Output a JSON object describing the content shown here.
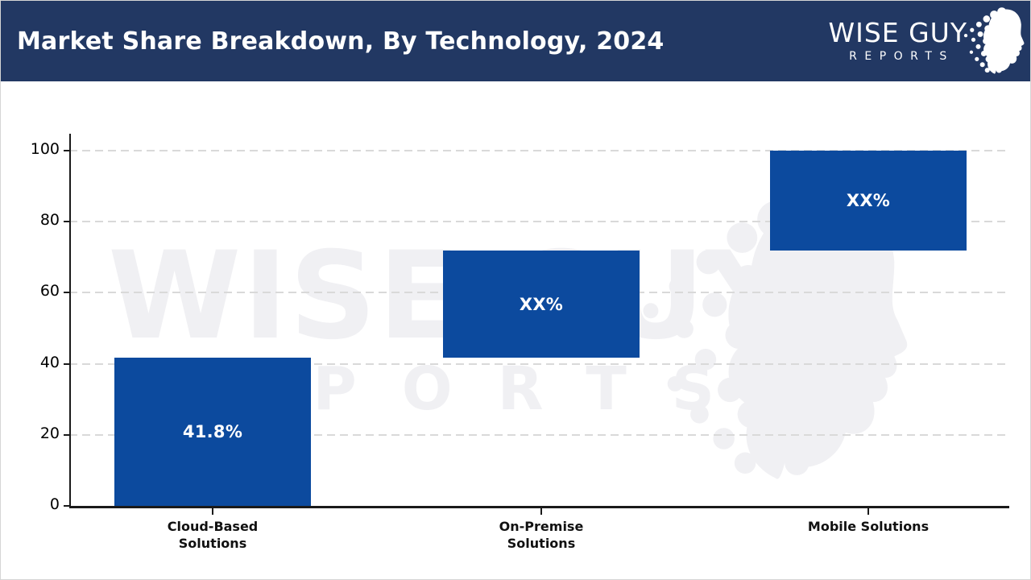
{
  "header": {
    "title": "Market Share Breakdown, By Technology, 2024",
    "logo": {
      "line1": "WISE GUY",
      "line2": "REPORTS",
      "face_icon": "dotted-head-profile-icon"
    }
  },
  "watermark": {
    "line1": "WISE GUY",
    "line2": "REPORTS",
    "face_icon": "dotted-head-profile-icon"
  },
  "chart_data": {
    "type": "bar",
    "subtype": "waterfall-stacked-percentage",
    "title": "Market Share Breakdown, By Technology, 2024",
    "categories": [
      "Cloud-Based\nSolutions",
      "On-Premise\nSolutions",
      "Mobile Solutions"
    ],
    "segments": [
      {
        "category": "Cloud-Based Solutions",
        "start": 0,
        "end": 41.8,
        "size": 41.8,
        "label": "41.8%"
      },
      {
        "category": "On-Premise Solutions",
        "start": 41.8,
        "end": 71.8,
        "size": 30.0,
        "label": "XX%"
      },
      {
        "category": "Mobile Solutions",
        "start": 71.8,
        "end": 100,
        "size": 28.2,
        "label": "XX%"
      }
    ],
    "xlabel": "",
    "ylabel": "",
    "ylim": [
      0,
      100
    ],
    "yticks": [
      0,
      20,
      40,
      60,
      80,
      100
    ],
    "grid": "horizontal-dashed",
    "legend": "none"
  },
  "colors": {
    "header_bg": "#223863",
    "bar": "#0c4a9e",
    "bar_label": "#ffffff",
    "grid": "#d9d9d9",
    "axis": "#1a1a1a",
    "watermark": "#f0f0f3",
    "border": "#d5d5d5"
  }
}
